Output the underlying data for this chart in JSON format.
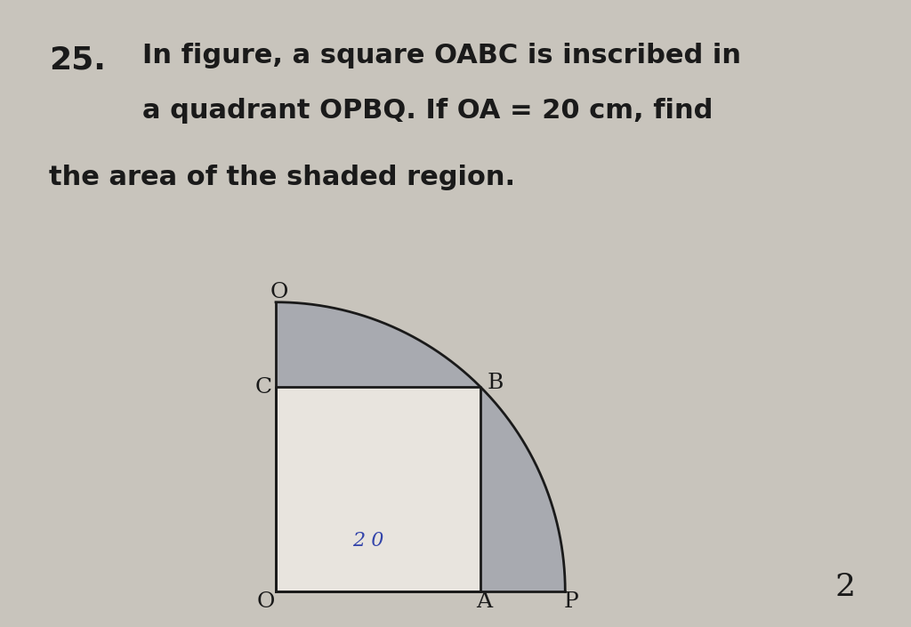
{
  "OA": 20,
  "background_color": "#c8c4bc",
  "square_facecolor": "#e8e4de",
  "shaded_color": "#a8aab0",
  "line_color": "#1a1a1a",
  "text_color": "#1a1a1a",
  "label_O_top": "O",
  "label_O_bottom": "O",
  "label_A": "A",
  "label_B": "B",
  "label_C": "C",
  "label_P": "P",
  "label_20_italic": "2 0",
  "label_2": "2",
  "text_line1": "25.",
  "text_line2": "In figure, a square OABC is inscribed in",
  "text_line3": "a quadrant OPBQ. If OA = 20 cm, find",
  "text_line4": "the area of the shaded region.",
  "figsize": [
    10.24,
    7.05
  ],
  "dpi": 100
}
